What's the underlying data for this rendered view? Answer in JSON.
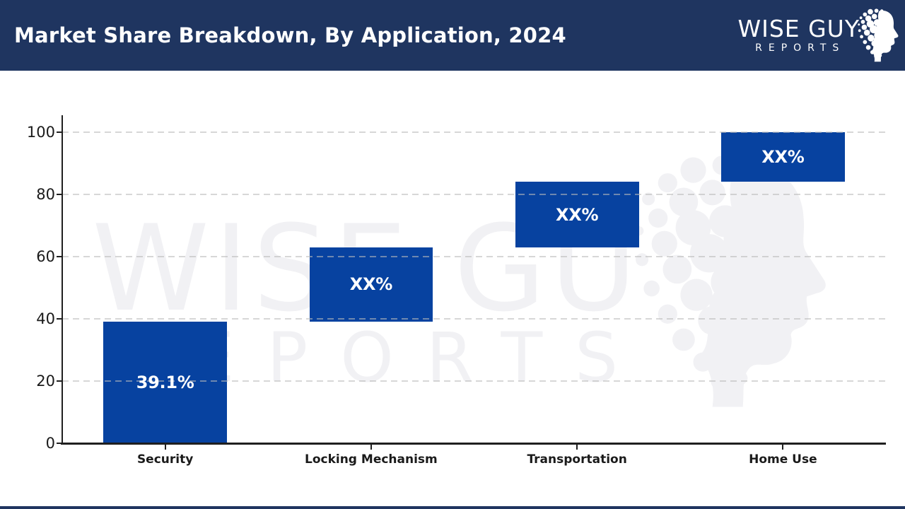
{
  "header": {
    "title": "Market Share Breakdown, By Application, 2024",
    "logo": {
      "name": "WISE GUY",
      "tagline": "REPORTS"
    }
  },
  "watermark": {
    "big_text": "WISE GU",
    "small_text": "REPORTS"
  },
  "chart_data": {
    "type": "bar",
    "variant": "waterfall",
    "title": "Market Share Breakdown, By Application, 2024",
    "unit": "%",
    "categories": [
      "Security",
      "Locking Mechanism",
      "Transportation",
      "Home Use"
    ],
    "segments": [
      {
        "category": "Security",
        "start": 0,
        "end": 39.1,
        "label": "39.1%"
      },
      {
        "category": "Locking Mechanism",
        "start": 39.1,
        "end": 63,
        "label": "XX%"
      },
      {
        "category": "Transportation",
        "start": 63,
        "end": 84,
        "label": "XX%"
      },
      {
        "category": "Home Use",
        "start": 84,
        "end": 100,
        "label": "XX%"
      }
    ],
    "yticks": [
      0,
      20,
      40,
      60,
      80,
      100
    ],
    "ylim": [
      0,
      105
    ],
    "xlabel": "",
    "ylabel": "",
    "legend": null,
    "grid": "horizontal-dashed"
  },
  "colors": {
    "header_navy": "#1f3560",
    "bar_blue": "#0742a0",
    "bar_label_white": "#ffffff",
    "grid_gray": "#d9d9d9",
    "axis_dark": "#1f1f1f",
    "tick_text": "#1a1a1a",
    "watermark_gray": "#f1f1f4",
    "background": "#ffffff"
  }
}
